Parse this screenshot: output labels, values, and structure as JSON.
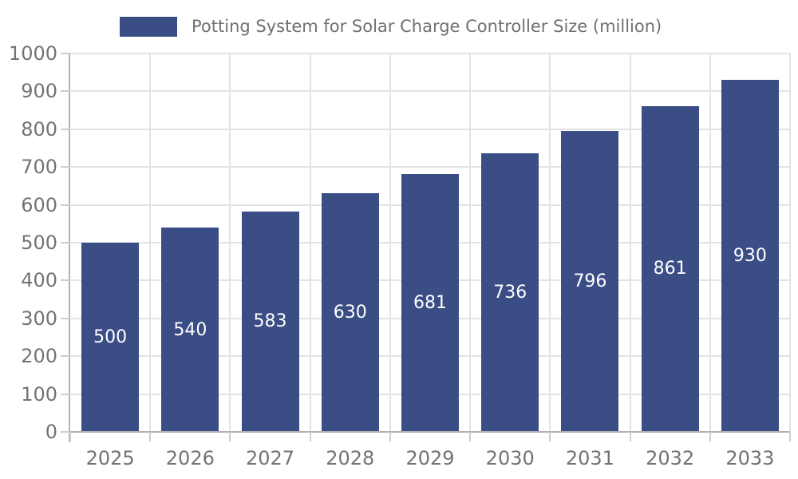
{
  "chart_data": {
    "type": "bar",
    "title": "Potting System for Solar Charge Controller Size (million)",
    "legend": {
      "position": "top",
      "entries": [
        "Potting System for Solar Charge Controller Size (million)"
      ]
    },
    "categories": [
      "2025",
      "2026",
      "2027",
      "2028",
      "2029",
      "2030",
      "2031",
      "2032",
      "2033"
    ],
    "values": [
      500,
      540,
      583,
      630,
      681,
      736,
      796,
      861,
      930
    ],
    "value_labels_shown": true,
    "xlabel": "",
    "ylabel": "",
    "ylim": [
      0,
      1000
    ],
    "ytick_interval": 100,
    "ytick_labels": [
      "0",
      "100",
      "200",
      "300",
      "400",
      "500",
      "600",
      "700",
      "800",
      "900",
      "1000"
    ],
    "grid": true,
    "colors": {
      "bar": "#3a4d85",
      "value_label": "#ffffff",
      "gridline": "#e3e3e7",
      "axis_line": "#b1b1b6",
      "tick_mark": "#cdcdd2",
      "tick_label": "#717477",
      "legend_text": "#6e7174",
      "background": "#ffffff"
    }
  }
}
